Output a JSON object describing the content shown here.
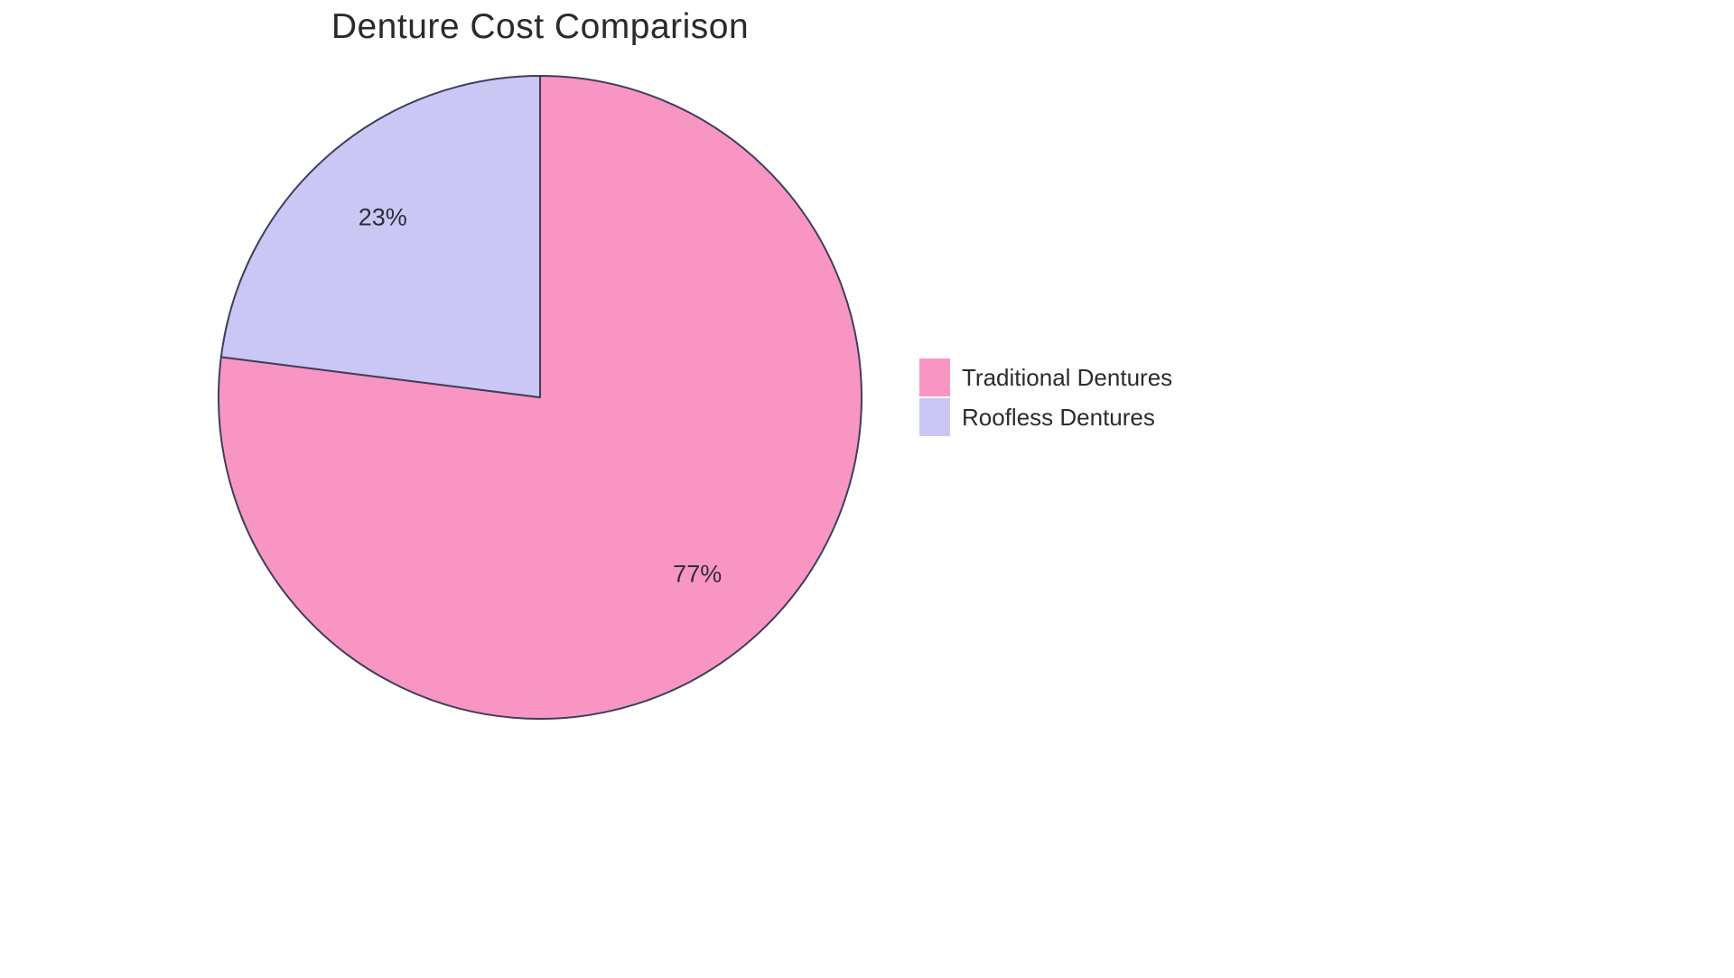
{
  "chart_data": {
    "type": "pie",
    "title": "Denture Cost Comparison",
    "slices": [
      {
        "label": "Traditional Dentures",
        "value": 77,
        "display": "77%",
        "color": "#F995C3"
      },
      {
        "label": "Roofless Dentures",
        "value": 23,
        "display": "23%",
        "color": "#CBC7F4"
      }
    ],
    "start_angle_deg": 0,
    "direction": "clockwise",
    "stroke_color": "#3d3f5c",
    "legend_position": "right",
    "legend_entries": [
      "Traditional Dentures",
      "Roofless Dentures"
    ]
  }
}
